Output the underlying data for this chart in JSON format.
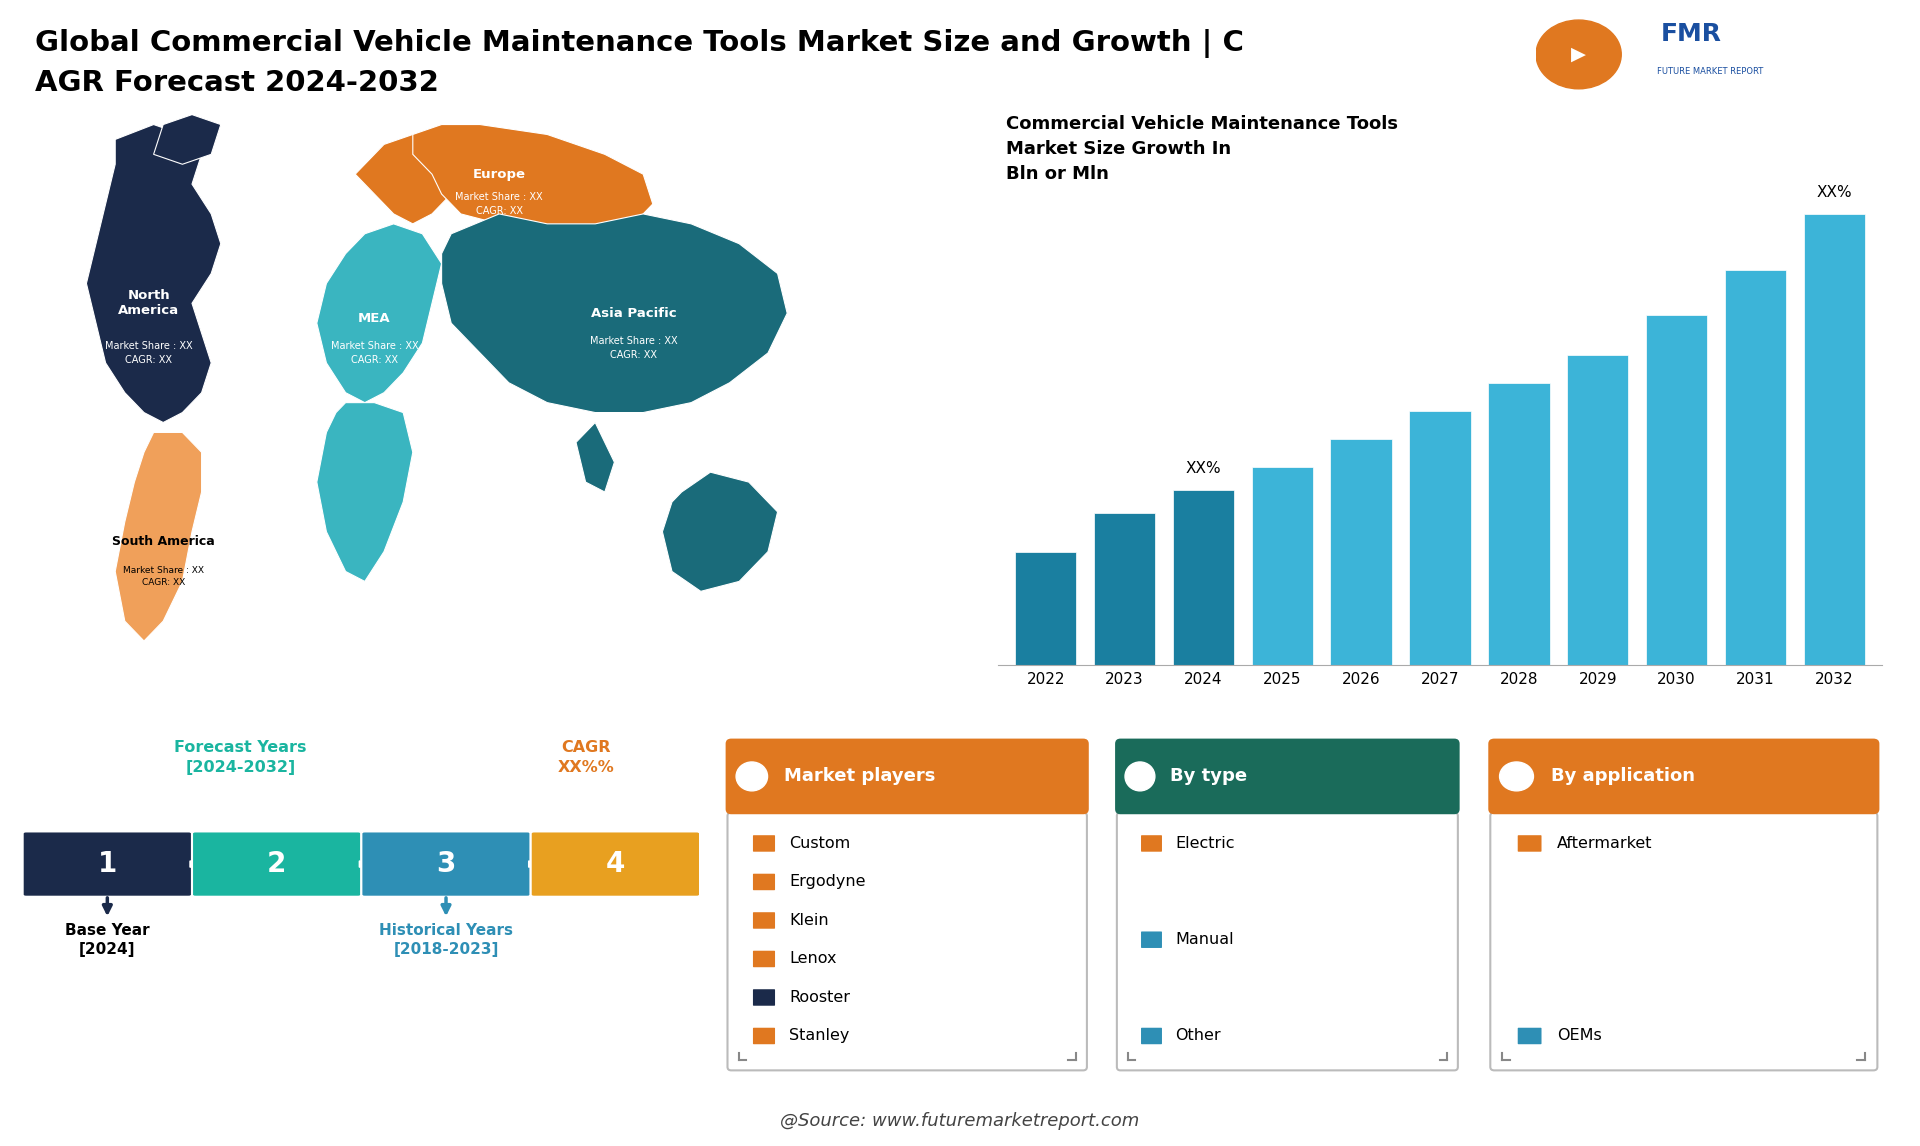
{
  "title_line1": "Global Commercial Vehicle Maintenance Tools Market Size and Growth | C",
  "title_line2": "AGR Forecast 2024-2032",
  "chart_title": "Commercial Vehicle Maintenance Tools\nMarket Size Growth In\nBln or Mln",
  "bar_years": [
    "2022",
    "2023",
    "2024",
    "2025",
    "2026",
    "2027",
    "2028",
    "2029",
    "2030",
    "2031",
    "2032"
  ],
  "bar_values": [
    1.0,
    1.35,
    1.55,
    1.75,
    2.0,
    2.25,
    2.5,
    2.75,
    3.1,
    3.5,
    4.0
  ],
  "bar_color_dark": "#1a7fa0",
  "bar_color_light": "#3cb4d8",
  "bar_label_2024": "XX%",
  "bar_label_2032": "XX%",
  "timeline_colors": [
    "#1b2a4a",
    "#1ab5a0",
    "#2e8fb5",
    "#e8a020"
  ],
  "timeline_labels": [
    "1",
    "2",
    "3",
    "4"
  ],
  "forecast_years_label": "Forecast Years\n[2024-2032]",
  "cagr_label": "CAGR\nXX%%",
  "base_year_label": "Base Year\n[2024]",
  "historical_years_label": "Historical Years\n[2018-2023]",
  "market_players_label": "Market players",
  "market_players": [
    "Custom",
    "Ergodyne",
    "Klein",
    "Lenox",
    "Rooster",
    "Stanley"
  ],
  "market_players_colors": [
    "#e07820",
    "#e07820",
    "#e07820",
    "#e07820",
    "#1b2a4a",
    "#e07820"
  ],
  "by_type_label": "By type",
  "by_type": [
    "Electric",
    "Manual",
    "Other"
  ],
  "by_type_colors": [
    "#e07820",
    "#2e8fb5",
    "#2e8fb5"
  ],
  "by_application_label": "By application",
  "by_application": [
    "Aftermarket",
    "OEMs"
  ],
  "by_application_colors": [
    "#e07820",
    "#2e8fb5"
  ],
  "source_text": "@Source: www.futuremarketreport.com",
  "bg_color": "#ffffff",
  "teal_color": "#1ab5a0",
  "orange_color": "#e07820",
  "dark_navy": "#1b2a4a",
  "blue_color": "#2e8fb5",
  "dark_teal_header": "#1a6b5a"
}
